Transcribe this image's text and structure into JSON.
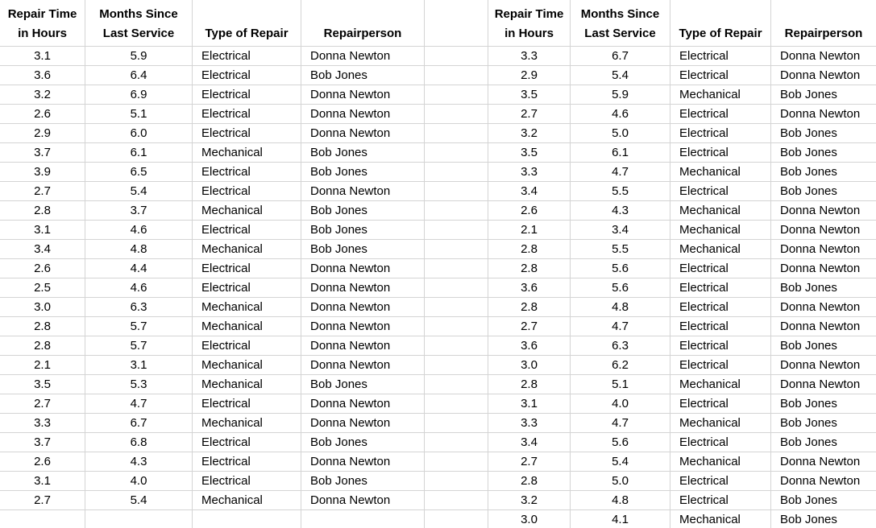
{
  "columns": [
    "Repair Time\nin Hours",
    "Months Since\nLast Service",
    "Type of Repair",
    "Repairperson"
  ],
  "left_table": {
    "rows": [
      [
        "3.1",
        "5.9",
        "Electrical",
        "Donna Newton"
      ],
      [
        "3.6",
        "6.4",
        "Electrical",
        "Bob Jones"
      ],
      [
        "3.2",
        "6.9",
        "Electrical",
        "Donna Newton"
      ],
      [
        "2.6",
        "5.1",
        "Electrical",
        "Donna Newton"
      ],
      [
        "2.9",
        "6.0",
        "Electrical",
        "Donna Newton"
      ],
      [
        "3.7",
        "6.1",
        "Mechanical",
        "Bob Jones"
      ],
      [
        "3.9",
        "6.5",
        "Electrical",
        "Bob Jones"
      ],
      [
        "2.7",
        "5.4",
        "Electrical",
        "Donna Newton"
      ],
      [
        "2.8",
        "3.7",
        "Mechanical",
        "Bob Jones"
      ],
      [
        "3.1",
        "4.6",
        "Electrical",
        "Bob Jones"
      ],
      [
        "3.4",
        "4.8",
        "Mechanical",
        "Bob Jones"
      ],
      [
        "2.6",
        "4.4",
        "Electrical",
        "Donna Newton"
      ],
      [
        "2.5",
        "4.6",
        "Electrical",
        "Donna Newton"
      ],
      [
        "3.0",
        "6.3",
        "Mechanical",
        "Donna Newton"
      ],
      [
        "2.8",
        "5.7",
        "Mechanical",
        "Donna Newton"
      ],
      [
        "2.8",
        "5.7",
        "Electrical",
        "Donna Newton"
      ],
      [
        "2.1",
        "3.1",
        "Mechanical",
        "Donna Newton"
      ],
      [
        "3.5",
        "5.3",
        "Mechanical",
        "Bob Jones"
      ],
      [
        "2.7",
        "4.7",
        "Electrical",
        "Donna Newton"
      ],
      [
        "3.3",
        "6.7",
        "Mechanical",
        "Donna Newton"
      ],
      [
        "3.7",
        "6.8",
        "Electrical",
        "Bob Jones"
      ],
      [
        "2.6",
        "4.3",
        "Electrical",
        "Donna Newton"
      ],
      [
        "3.1",
        "4.0",
        "Electrical",
        "Bob Jones"
      ],
      [
        "2.7",
        "5.4",
        "Mechanical",
        "Donna Newton"
      ]
    ]
  },
  "right_table": {
    "rows": [
      [
        "3.3",
        "6.7",
        "Electrical",
        "Donna Newton"
      ],
      [
        "2.9",
        "5.4",
        "Electrical",
        "Donna Newton"
      ],
      [
        "3.5",
        "5.9",
        "Mechanical",
        "Bob Jones"
      ],
      [
        "2.7",
        "4.6",
        "Electrical",
        "Donna Newton"
      ],
      [
        "3.2",
        "5.0",
        "Electrical",
        "Bob Jones"
      ],
      [
        "3.5",
        "6.1",
        "Electrical",
        "Bob Jones"
      ],
      [
        "3.3",
        "4.7",
        "Mechanical",
        "Bob Jones"
      ],
      [
        "3.4",
        "5.5",
        "Electrical",
        "Bob Jones"
      ],
      [
        "2.6",
        "4.3",
        "Mechanical",
        "Donna Newton"
      ],
      [
        "2.1",
        "3.4",
        "Mechanical",
        "Donna Newton"
      ],
      [
        "2.8",
        "5.5",
        "Mechanical",
        "Donna Newton"
      ],
      [
        "2.8",
        "5.6",
        "Electrical",
        "Donna Newton"
      ],
      [
        "3.6",
        "5.6",
        "Electrical",
        "Bob Jones"
      ],
      [
        "2.8",
        "4.8",
        "Electrical",
        "Donna Newton"
      ],
      [
        "2.7",
        "4.7",
        "Electrical",
        "Donna Newton"
      ],
      [
        "3.6",
        "6.3",
        "Electrical",
        "Bob Jones"
      ],
      [
        "3.0",
        "6.2",
        "Electrical",
        "Donna Newton"
      ],
      [
        "2.8",
        "5.1",
        "Mechanical",
        "Donna Newton"
      ],
      [
        "3.1",
        "4.0",
        "Electrical",
        "Bob Jones"
      ],
      [
        "3.3",
        "4.7",
        "Mechanical",
        "Bob Jones"
      ],
      [
        "3.4",
        "5.6",
        "Electrical",
        "Bob Jones"
      ],
      [
        "2.7",
        "5.4",
        "Mechanical",
        "Donna Newton"
      ],
      [
        "2.8",
        "5.0",
        "Electrical",
        "Donna Newton"
      ],
      [
        "3.2",
        "4.8",
        "Electrical",
        "Bob Jones"
      ],
      [
        "3.0",
        "4.1",
        "Mechanical",
        "Bob Jones"
      ]
    ]
  },
  "colors": {
    "gridline": "#d4d4d4",
    "text": "#000000",
    "background": "#ffffff"
  }
}
